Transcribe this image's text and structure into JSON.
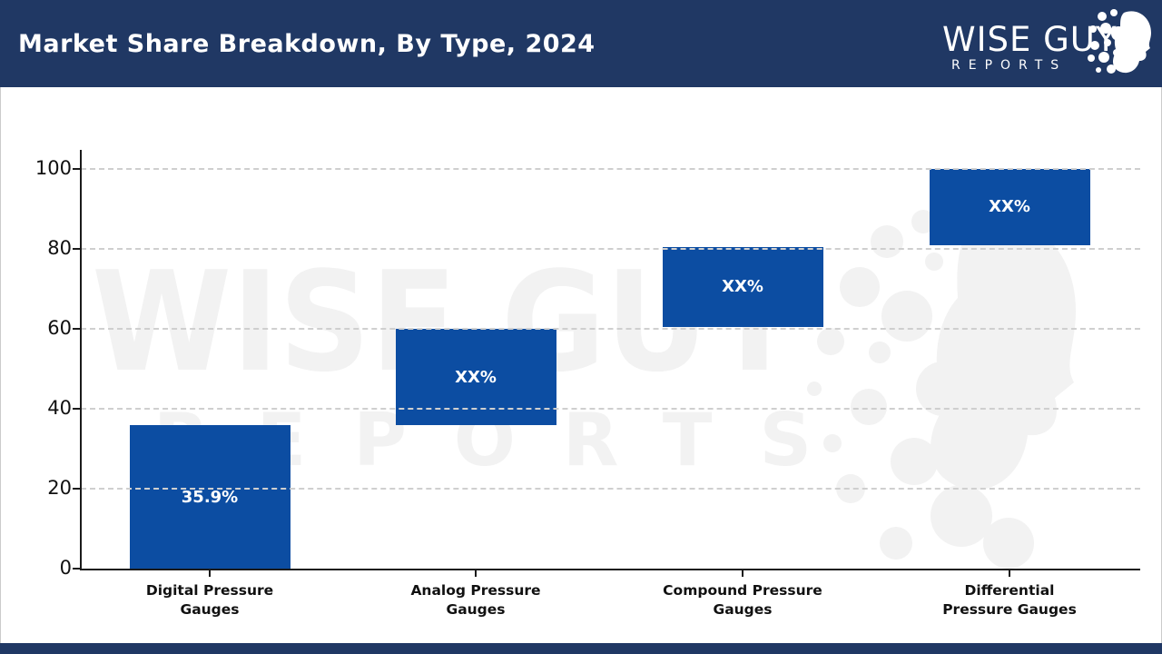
{
  "header": {
    "title": "Market Share Breakdown, By Type, 2024",
    "logo": {
      "line1": "WISE GUY",
      "line2": "REPORTS"
    }
  },
  "watermark": {
    "line1": "WISE GUY",
    "line2": "REPORTS"
  },
  "chart_data": {
    "type": "bar",
    "subtype": "floating-segment-waterfall",
    "title": "Market Share Breakdown, By Type, 2024",
    "categories": [
      "Digital Pressure Gauges",
      "Analog Pressure Gauges",
      "Compound Pressure Gauges",
      "Differential Pressure Gauges"
    ],
    "categories_display": [
      "Digital Pressure\nGauges",
      "Analog Pressure\nGauges",
      "Compound Pressure\nGauges",
      "Differential\nPressure Gauges"
    ],
    "segments": [
      {
        "category": "Digital Pressure Gauges",
        "start": 0,
        "end": 35.9,
        "label": "35.9%"
      },
      {
        "category": "Analog Pressure Gauges",
        "start": 35.9,
        "end": 60,
        "label": "XX%"
      },
      {
        "category": "Compound Pressure Gauges",
        "start": 60.5,
        "end": 80.5,
        "label": "XX%"
      },
      {
        "category": "Differential Pressure Gauges",
        "start": 81,
        "end": 100,
        "label": "XX%"
      }
    ],
    "xlabel": "",
    "ylabel": "",
    "ylim": [
      0,
      100
    ],
    "yticks": [
      0,
      20,
      40,
      60,
      80,
      100
    ],
    "grid": "horizontal-dashed",
    "legend": "none",
    "bar_color": "#0c4da2",
    "bar_label_color": "#ffffff"
  },
  "colors": {
    "header_bg": "#203864",
    "footer_bg": "#203864",
    "bar": "#0c4da2",
    "grid": "#cfcfcf",
    "axis": "#1a1a1a",
    "watermark": "#f2f2f2",
    "page_border": "#cbcbcb"
  }
}
